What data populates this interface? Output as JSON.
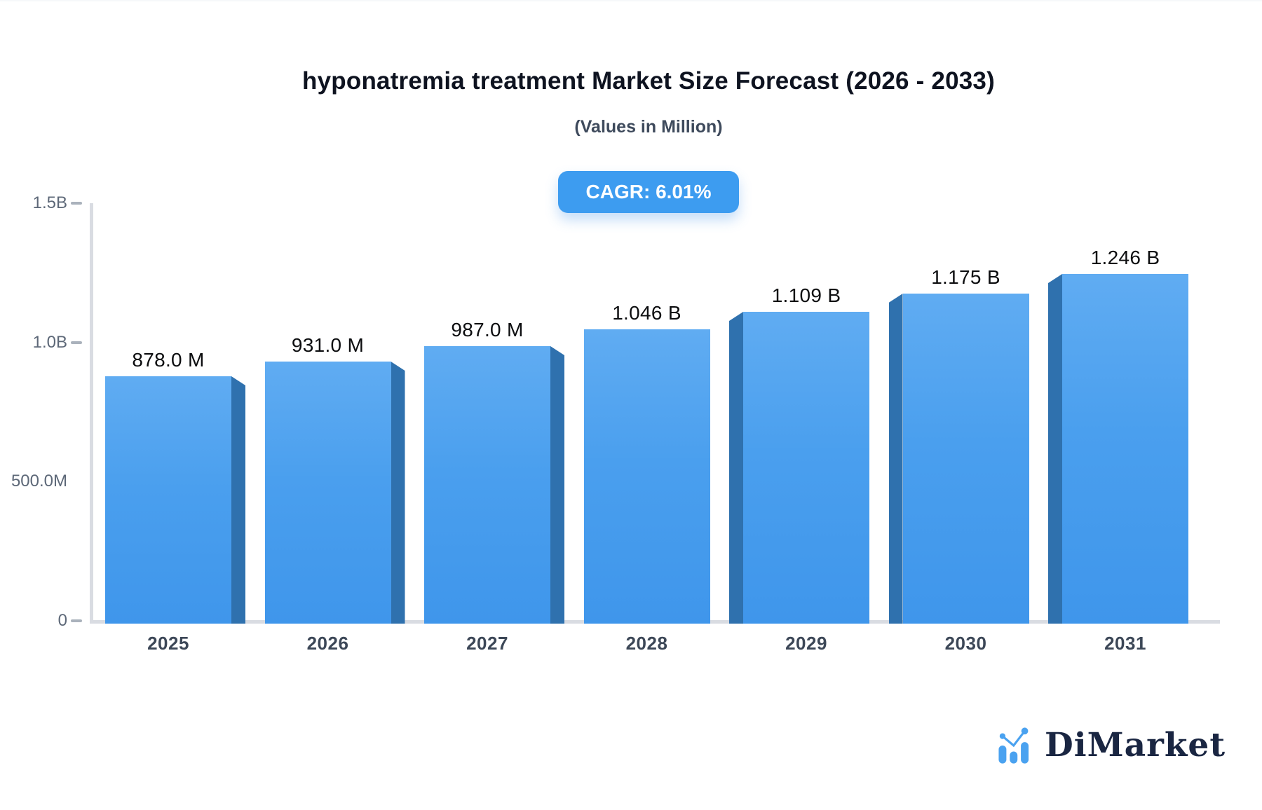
{
  "header": {
    "title": "hyponatremia treatment Market Size Forecast (2026 - 2033)",
    "subtitle": "(Values in Million)",
    "cagr_badge": "CAGR: 6.01%"
  },
  "chart_data": {
    "type": "bar",
    "title": "hyponatremia treatment Market Size Forecast (2026 - 2033)",
    "subtitle": "(Values in Million)",
    "categories": [
      "2025",
      "2026",
      "2027",
      "2028",
      "2029",
      "2030",
      "2031"
    ],
    "values_millions": [
      878.0,
      931.0,
      987.0,
      1046,
      1109,
      1175,
      1246
    ],
    "value_labels": [
      "878.0 M",
      "931.0 M",
      "987.0 M",
      "1.046 B",
      "1.109 B",
      "1.175 B",
      "1.246 B"
    ],
    "ylabel": "",
    "xlabel": "",
    "ylim_millions": [
      0,
      1500
    ],
    "y_ticks": [
      {
        "label": "1.5B",
        "value": 1500,
        "dash": true
      },
      {
        "label": "1.0B",
        "value": 1000,
        "dash": true
      },
      {
        "label": "500.0M",
        "value": 500,
        "dash": false
      },
      {
        "label": "0",
        "value": 0,
        "dash": true
      }
    ],
    "grid": "off",
    "legend": "none",
    "colors": {
      "bar_face_top": "#60acf2",
      "bar_face_bottom": "#3f96eb",
      "bar_side": "#2f71ae",
      "badge_bg": "#3d9cf0",
      "axis_line": "#d9dce2"
    }
  },
  "logo": {
    "brand": "DiMarket",
    "icon": "dimarket-chart-icon"
  }
}
